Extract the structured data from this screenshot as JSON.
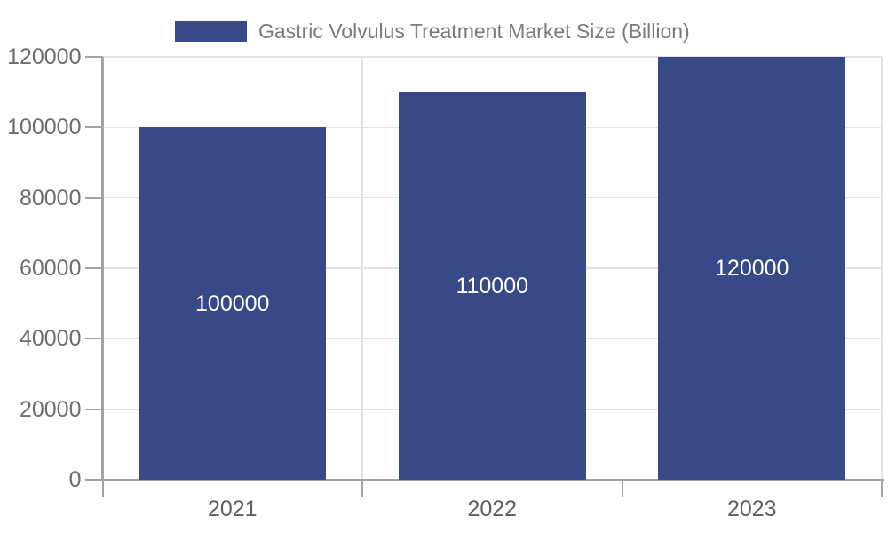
{
  "chart_data": {
    "type": "bar",
    "title": "Gastric Volvulus Treatment Market Size (Billion)",
    "categories": [
      "2021",
      "2022",
      "2023"
    ],
    "values": [
      100000,
      110000,
      120000
    ],
    "bar_labels": [
      "100000",
      "110000",
      "120000"
    ],
    "ytick_labels": [
      "0",
      "20000",
      "40000",
      "60000",
      "80000",
      "100000",
      "120000"
    ],
    "yticks": [
      0,
      20000,
      40000,
      60000,
      80000,
      100000,
      120000
    ],
    "ylim": [
      0,
      120000
    ],
    "xlabel": "",
    "ylabel": "",
    "grid": true,
    "legend_position": "top",
    "colors": {
      "bar": "#374A87",
      "grid": "#e3e3e6",
      "axis": "#a3a3a3",
      "bar_label_text": "#ffffff",
      "y_tick_text": "#6d6d6d",
      "x_tick_text": "#5f5f5f",
      "legend_text": "#7a7a7a",
      "background": "#ffffff"
    }
  }
}
